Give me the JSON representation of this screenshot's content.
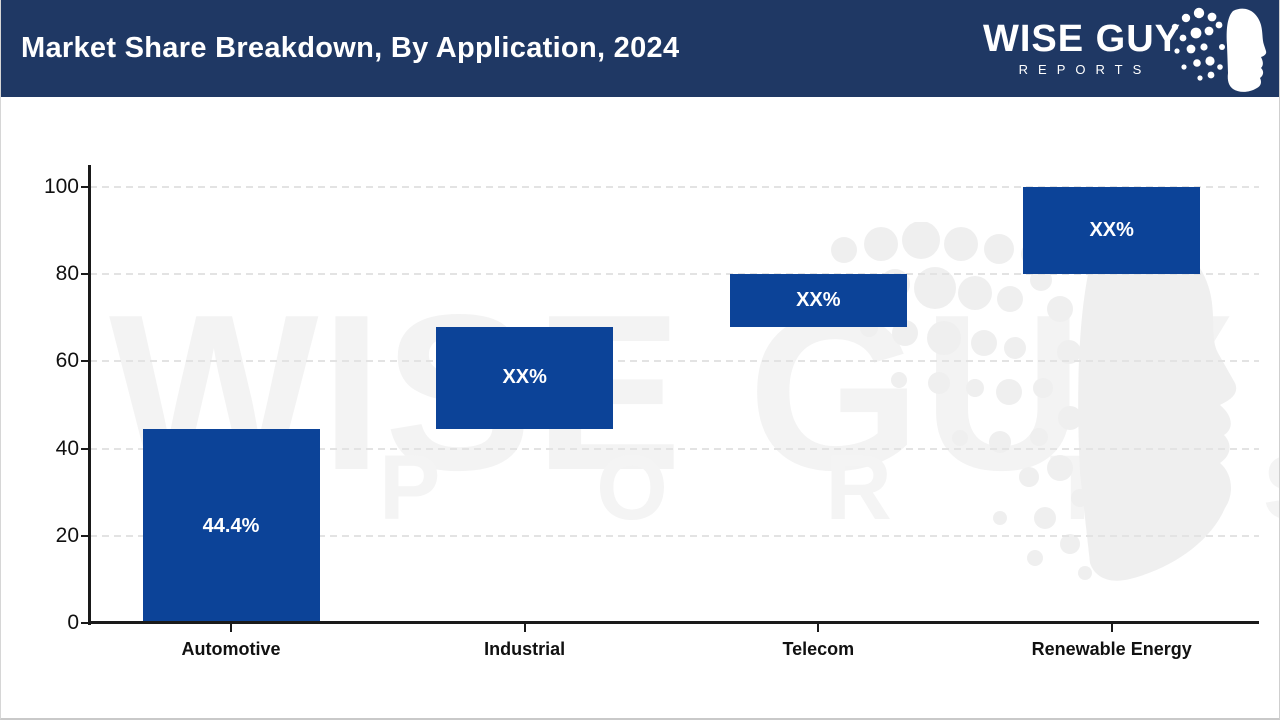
{
  "header": {
    "title": "Market Share Breakdown, By Application, 2024",
    "bg_color": "#1f3864",
    "logo": {
      "line1": "WISE GUY",
      "line2": "REPORTS"
    }
  },
  "watermark": {
    "line1": "WISE GUY",
    "line2": "P O R T S",
    "color": "#f3f3f3"
  },
  "chart_data": {
    "type": "bar",
    "subtype": "waterfall",
    "title": "",
    "xlabel": "",
    "ylabel": "",
    "categories": [
      "Automotive",
      "Industrial",
      "Telecom",
      "Renewable Energy"
    ],
    "segments": [
      {
        "category": "Automotive",
        "start": 0,
        "end": 44.4,
        "label": "44.4%"
      },
      {
        "category": "Industrial",
        "start": 44.4,
        "end": 68,
        "label": "XX%"
      },
      {
        "category": "Telecom",
        "start": 68,
        "end": 80,
        "label": "XX%"
      },
      {
        "category": "Renewable Energy",
        "start": 80,
        "end": 100,
        "label": "XX%"
      }
    ],
    "yticks": [
      0,
      20,
      40,
      60,
      80,
      100
    ],
    "ylim": [
      0,
      105
    ],
    "grid": true,
    "legend": false,
    "bar_color": "#0c4398",
    "bar_label_color": "#ffffff",
    "gridline_color": "#e3e3e3",
    "axis_color": "#1a1a1a"
  }
}
